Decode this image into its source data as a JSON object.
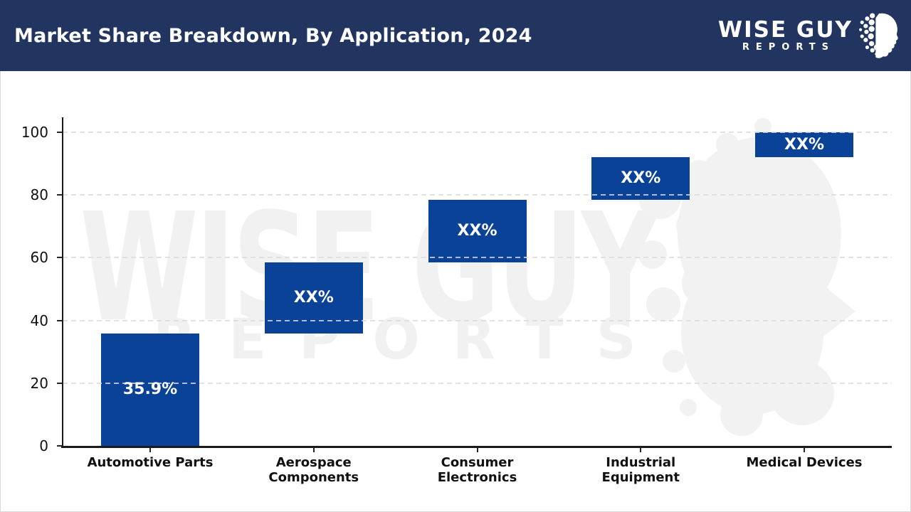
{
  "header": {
    "title": "Market Share Breakdown, By Application, 2024",
    "logo": {
      "line1": "WISE GUY",
      "line2": "REPORTS"
    }
  },
  "watermark": {
    "line1": "WISE GUY",
    "line2": "REPORTS"
  },
  "colors": {
    "header_bg": "#213560",
    "bar": "#0a4298",
    "axis": "#1a1a1a",
    "grid": "#dcdcdc",
    "bar_label": "#ffffff",
    "watermark": "#f1f1f1"
  },
  "chart_data": {
    "type": "bar",
    "subtype": "floating-waterfall",
    "title": "Market Share Breakdown, By Application, 2024",
    "xlabel": "",
    "ylabel": "",
    "ylim": [
      0,
      100
    ],
    "yticks": [
      0,
      20,
      40,
      60,
      80,
      100
    ],
    "grid": "horizontal-dashed",
    "legend": "none",
    "categories": [
      "Automotive Parts",
      "Aerospace Components",
      "Consumer Electronics",
      "Industrial Equipment",
      "Medical Devices"
    ],
    "bars": [
      {
        "category": "Automotive Parts",
        "category_lines": [
          "Automotive Parts"
        ],
        "start": 0,
        "end": 35.9,
        "label": "35.9%"
      },
      {
        "category": "Aerospace Components",
        "category_lines": [
          "Aerospace",
          "Components"
        ],
        "start": 35.9,
        "end": 58.5,
        "label": "XX%"
      },
      {
        "category": "Consumer Electronics",
        "category_lines": [
          "Consumer",
          "Electronics"
        ],
        "start": 58.5,
        "end": 78.5,
        "label": "XX%"
      },
      {
        "category": "Industrial Equipment",
        "category_lines": [
          "Industrial",
          "Equipment"
        ],
        "start": 78.5,
        "end": 92,
        "label": "XX%"
      },
      {
        "category": "Medical Devices",
        "category_lines": [
          "Medical Devices"
        ],
        "start": 92,
        "end": 100,
        "label": "XX%"
      }
    ]
  }
}
